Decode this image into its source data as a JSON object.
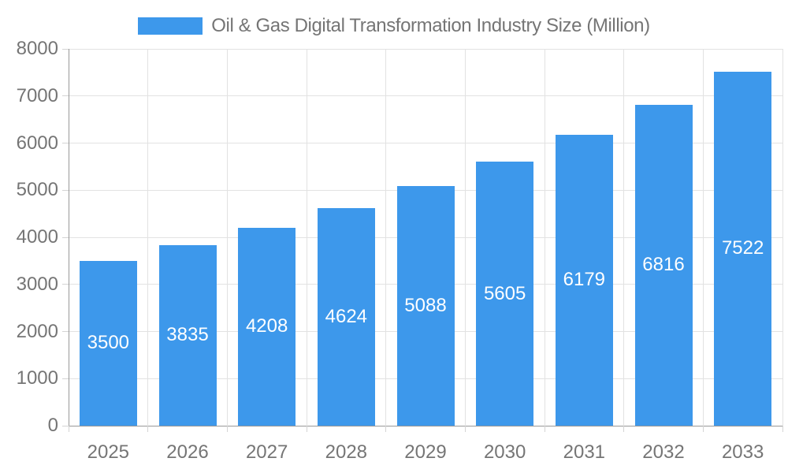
{
  "chart_data": {
    "type": "bar",
    "title": "Oil & Gas Digital Transformation Industry Size (Million)",
    "series_name": "Oil & Gas Digital Transformation Industry Size (Million)",
    "categories": [
      "2025",
      "2026",
      "2027",
      "2028",
      "2029",
      "2030",
      "2031",
      "2032",
      "2033"
    ],
    "values": [
      3500,
      3835,
      4208,
      4624,
      5088,
      5605,
      6179,
      6816,
      7522
    ],
    "xlabel": "",
    "ylabel": "",
    "ylim": [
      0,
      8000
    ],
    "ytick_step": 1000,
    "yticks": [
      0,
      1000,
      2000,
      3000,
      4000,
      5000,
      6000,
      7000,
      8000
    ],
    "grid": true,
    "grid_vertical": true,
    "legend_position": "top-center",
    "bar_labels_inside": true
  },
  "legend": {
    "label": "Oil & Gas Digital Transformation Industry Size (Million)"
  },
  "colors": {
    "bar": "#3D98EB",
    "bar_label": "#FFFFFF",
    "axis_text": "#757575",
    "legend_text": "#757575",
    "grid_line": "#E2E2E2",
    "axis_line": "#999999",
    "tick_mark": "#D4D4D4",
    "background": "#FFFFFF"
  }
}
